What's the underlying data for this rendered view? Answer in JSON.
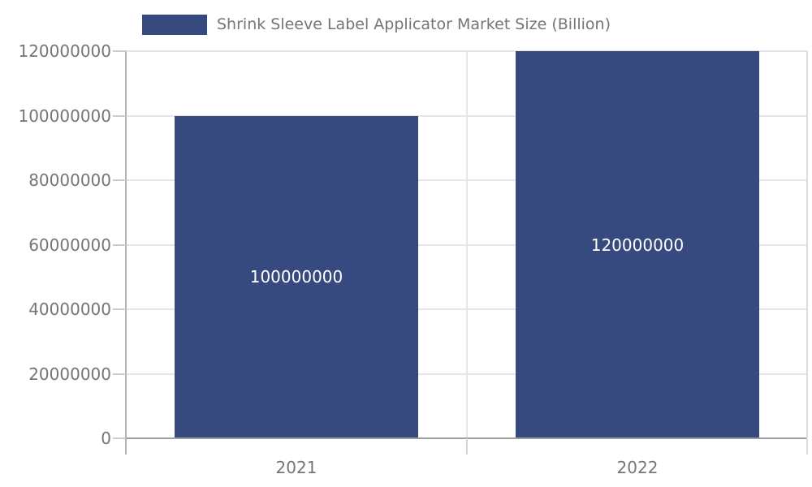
{
  "chart_data": {
    "type": "bar",
    "title": "",
    "legend": {
      "position": "top-left",
      "label": "Shrink Sleeve Label Applicator Market Size (Billion)"
    },
    "categories": [
      "2021",
      "2022"
    ],
    "series": [
      {
        "name": "Shrink Sleeve Label Applicator Market Size (Billion)",
        "values": [
          100000000,
          120000000
        ]
      }
    ],
    "value_labels": [
      "100000000",
      "120000000"
    ],
    "xlabel": "",
    "ylabel": "",
    "ylim": [
      0,
      120000000
    ],
    "yticks": [
      0,
      20000000,
      40000000,
      60000000,
      80000000,
      100000000,
      120000000
    ],
    "grid": true,
    "colors": {
      "bar": "#374a80",
      "grid": "#e6e6e6",
      "x_axis_line": "#9e9e9e",
      "y_axis_line": "#b3b3b3",
      "tick_mark": "#cccccc",
      "boundary_tick": "#d6d6d6",
      "plot_border": "#dddddd",
      "tick_label_text": "#757575",
      "legend_text": "#757575",
      "value_label_text": "#ffffff",
      "background": "#ffffff"
    }
  }
}
